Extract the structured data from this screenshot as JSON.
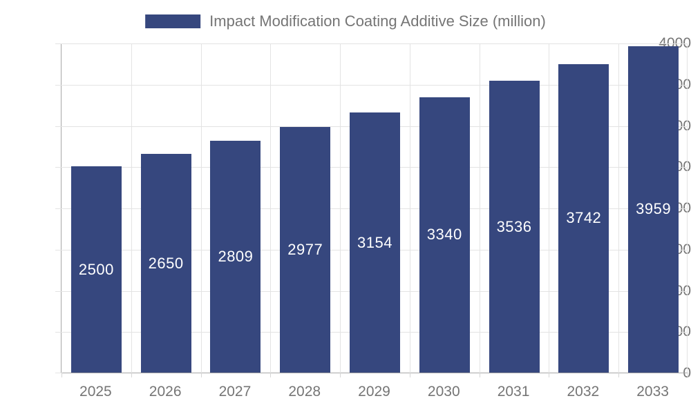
{
  "legend": {
    "label": "Impact Modification Coating Additive Size (million)"
  },
  "chart_data": {
    "type": "bar",
    "title": "Impact Modification Coating Additive Size (million)",
    "series_name": "Impact Modification Coating Additive Size (million)",
    "categories": [
      "2025",
      "2026",
      "2027",
      "2028",
      "2029",
      "2030",
      "2031",
      "2032",
      "2033"
    ],
    "values": [
      2500,
      2650,
      2809,
      2977,
      3154,
      3340,
      3536,
      3742,
      3959
    ],
    "xlabel": "",
    "ylabel": "",
    "ylim": [
      0,
      4000
    ],
    "yticks": [
      0,
      500,
      1000,
      1500,
      2000,
      2500,
      3000,
      3500,
      4000
    ],
    "grid": true,
    "legend_position": "top",
    "bar_labels_inside": true,
    "colors": {
      "bar": "#36477e",
      "bar_label_text": "#ffffff",
      "axis_text": "#757575",
      "gridline": "#e3e3e3",
      "axis_line": "#a6a6a6",
      "background": "#ffffff"
    }
  }
}
